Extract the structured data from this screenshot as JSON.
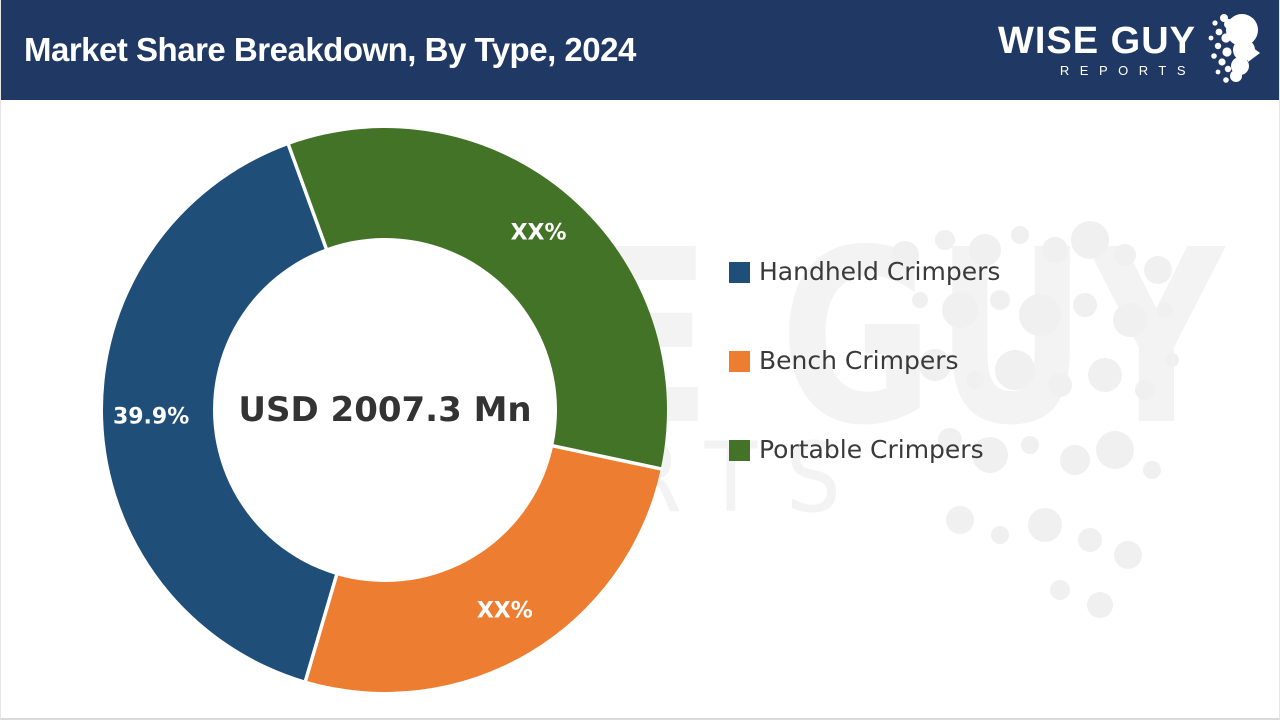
{
  "header": {
    "title": "Market Share Breakdown, By Type, 2024",
    "logo": {
      "name": "WISE GUY",
      "subtitle": "REPORTS"
    },
    "bg_color": "#203864"
  },
  "watermark": {
    "line1": "WISE GUY",
    "line2": "REPORTS"
  },
  "chart_data": {
    "type": "donut",
    "title": "Market Share Breakdown, By Type, 2024",
    "center_label": "USD 2007.3 Mn",
    "start_angle_deg": -20,
    "direction": "clockwise",
    "legend_position": "right",
    "segments": [
      {
        "label": "Portable Crimpers",
        "display_value": "XX%",
        "percent": 33.9,
        "color": "#427327"
      },
      {
        "label": "Bench Crimpers",
        "display_value": "XX%",
        "percent": 26.2,
        "color": "#ed7d31"
      },
      {
        "label": "Handheld Crimpers",
        "display_value": "39.9%",
        "percent": 39.9,
        "color": "#1f4e79"
      }
    ]
  },
  "legend": {
    "items": [
      {
        "label": "Handheld Crimpers",
        "color": "#1f4e79"
      },
      {
        "label": "Bench Crimpers",
        "color": "#ed7d31"
      },
      {
        "label": "Portable Crimpers",
        "color": "#427327"
      }
    ]
  }
}
